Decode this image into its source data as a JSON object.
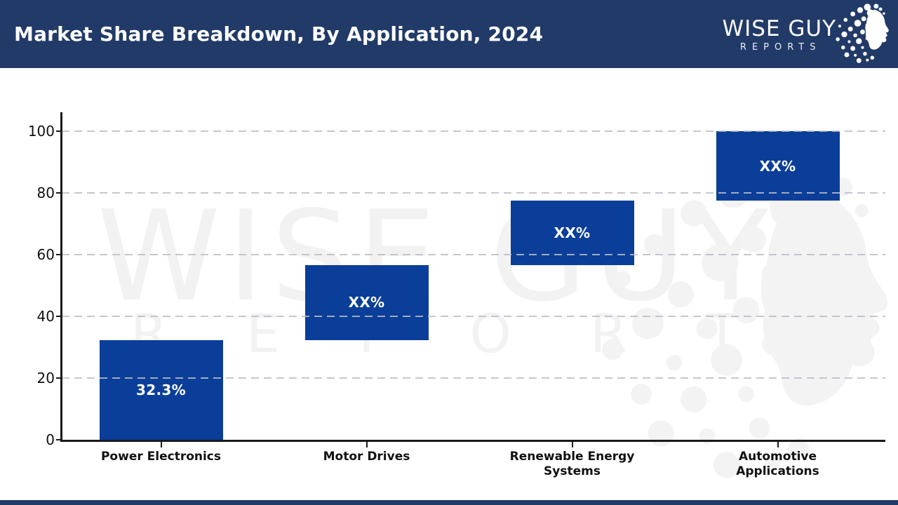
{
  "header": {
    "title": "Market Share Breakdown, By Application, 2024",
    "logo": {
      "line1": "WISE GUY",
      "line2": "REPORTS"
    }
  },
  "watermark": {
    "line1": "WISE GUY",
    "line2": "R E P O R T S"
  },
  "footer": {},
  "chart_data": {
    "type": "bar",
    "subtype": "waterfall",
    "title": "Market Share Breakdown, By Application, 2024",
    "categories": [
      "Power Electronics",
      "Motor Drives",
      "Renewable Energy Systems",
      "Automotive Applications"
    ],
    "segments": [
      {
        "category": "Power Electronics",
        "start": 0,
        "end": 32.3,
        "label": "32.3%"
      },
      {
        "category": "Motor Drives",
        "start": 32.3,
        "end": 56.6,
        "label": "XX%"
      },
      {
        "category": "Renewable Energy Systems",
        "start": 56.6,
        "end": 77.5,
        "label": "XX%"
      },
      {
        "category": "Automotive Applications",
        "start": 77.5,
        "end": 100,
        "label": "XX%"
      }
    ],
    "y_ticks": [
      0,
      20,
      40,
      60,
      80,
      100
    ],
    "ylim": [
      0,
      106
    ],
    "xlabel": "",
    "ylabel": "",
    "grid": "horizontal-dashed",
    "legend_position": "none",
    "bar_color": "#0a3e98",
    "bar_value_label_color": "#ffffff",
    "axis_color": "#1a1a1a",
    "gridline_color": "#d9d9d9"
  },
  "colors": {
    "header_bg": "#213a67",
    "footer_bg": "#213a67",
    "background": "#ffffff",
    "watermark": "#f2f2f2"
  }
}
